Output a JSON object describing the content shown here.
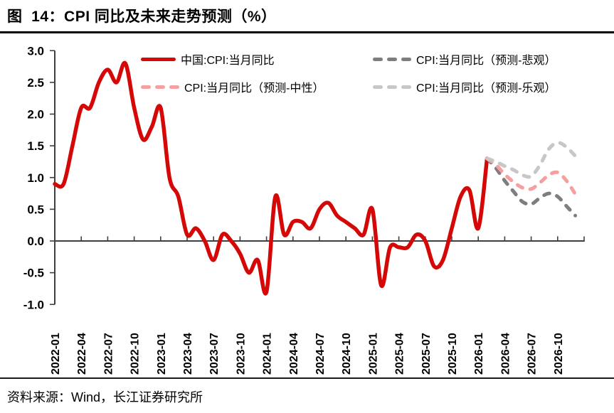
{
  "header": {
    "title": "图  14：CPI 同比及未来走势预测（%）"
  },
  "source": {
    "text": "资料来源：Wind，长江证券研究所"
  },
  "colors": {
    "actual_red": "#d50808",
    "forecast_pessimistic_gray": "#7e7e7e",
    "forecast_neutral_pink": "#f5a0a0",
    "forecast_optimistic_gray": "#c7c7c7",
    "axis": "#3f3f3f",
    "rule_black": "#000000"
  },
  "legend": {
    "items": [
      {
        "label": "中国:CPI:当月同比",
        "color": "#d50808",
        "style": "solid"
      },
      {
        "label": "CPI:当月同比（预测-悲观）",
        "color": "#7e7e7e",
        "style": "dashed"
      },
      {
        "label": "CPI:当月同比（预测-中性）",
        "color": "#f5a0a0",
        "style": "dashed"
      },
      {
        "label": "CPI:当月同比（预测-乐观）",
        "color": "#c7c7c7",
        "style": "dashed"
      }
    ]
  },
  "chart_data": {
    "type": "line",
    "title": "图 14：CPI 同比及未来走势预测（%）",
    "xlabel": "",
    "ylabel": "",
    "ylim": [
      -1.0,
      3.0
    ],
    "y_tick_step": 0.5,
    "y_ticks": [
      3.0,
      2.5,
      2.0,
      1.5,
      1.0,
      0.5,
      0.0,
      -0.5,
      -1.0
    ],
    "grid": false,
    "legend_position": "top",
    "x_axis_start_month": "2022-01",
    "x_axis_total_months": 60,
    "x_tick_interval_months": 3,
    "x_tick_labels": [
      "2022-01",
      "2022-04",
      "2022-07",
      "2022-10",
      "2023-01",
      "2023-04",
      "2023-07",
      "2023-10",
      "2024-01",
      "2024-04",
      "2024-07",
      "2024-10",
      "2025-01",
      "2025-04",
      "2025-07",
      "2025-10",
      "2026-01",
      "2026-04",
      "2026-07",
      "2026-10"
    ],
    "series": [
      {
        "name": "中国:CPI:当月同比",
        "color": "#d50808",
        "style": "solid",
        "start_month_index": 0,
        "months": "2022-01 .. 2026-02",
        "values": [
          0.9,
          0.9,
          1.5,
          2.1,
          2.1,
          2.5,
          2.7,
          2.5,
          2.8,
          2.1,
          1.6,
          1.8,
          2.1,
          1.0,
          0.7,
          0.1,
          0.2,
          0.0,
          -0.3,
          0.1,
          0.0,
          -0.2,
          -0.5,
          -0.3,
          -0.8,
          0.7,
          0.1,
          0.3,
          0.3,
          0.2,
          0.5,
          0.6,
          0.4,
          0.3,
          0.2,
          0.1,
          0.5,
          -0.7,
          -0.1,
          -0.1,
          -0.1,
          0.1,
          0.0,
          -0.4,
          -0.3,
          0.2,
          0.7,
          0.8,
          0.2,
          1.3
        ]
      },
      {
        "name": "CPI:当月同比（预测-悲观）",
        "color": "#7e7e7e",
        "style": "dashed",
        "start_month_index": 49,
        "months": "2026-02 .. 2026-12",
        "values": [
          1.3,
          1.15,
          0.95,
          0.78,
          0.62,
          0.58,
          0.68,
          0.75,
          0.7,
          0.55,
          0.4
        ]
      },
      {
        "name": "CPI:当月同比（预测-中性）",
        "color": "#f5a0a0",
        "style": "dashed",
        "start_month_index": 49,
        "months": "2026-02 .. 2026-12",
        "values": [
          1.3,
          1.2,
          1.05,
          0.93,
          0.84,
          0.82,
          0.92,
          1.04,
          1.08,
          0.95,
          0.74
        ]
      },
      {
        "name": "CPI:当月同比（预测-乐观）",
        "color": "#c7c7c7",
        "style": "dashed",
        "start_month_index": 49,
        "months": "2026-02 .. 2026-12",
        "values": [
          1.3,
          1.25,
          1.18,
          1.12,
          1.04,
          1.02,
          1.2,
          1.45,
          1.55,
          1.48,
          1.34
        ]
      }
    ]
  }
}
